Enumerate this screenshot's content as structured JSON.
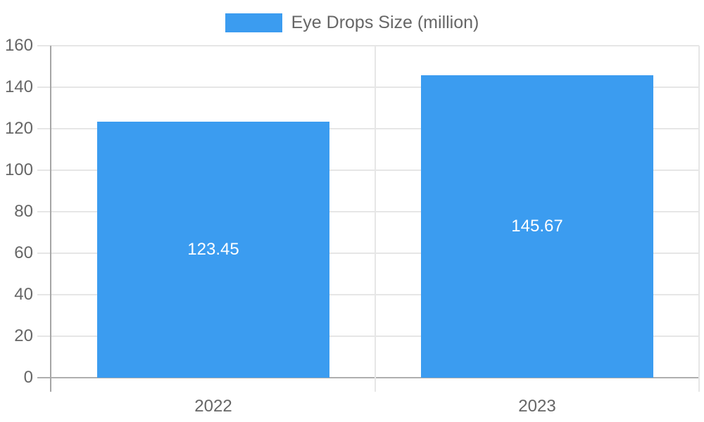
{
  "chart_data": {
    "type": "bar",
    "title": "",
    "legend": {
      "label": "Eye Drops Size (million)",
      "position": "top-center"
    },
    "categories": [
      "2022",
      "2023"
    ],
    "series": [
      {
        "name": "Eye Drops Size (million)",
        "color": "#3B9CF0",
        "values": [
          123.45,
          145.67
        ],
        "value_labels": [
          "123.45",
          "145.67"
        ]
      }
    ],
    "xlabel": "",
    "ylabel": "",
    "ylim": [
      0,
      160
    ],
    "ytick_step": 20,
    "yticks": [
      "0",
      "20",
      "40",
      "60",
      "80",
      "100",
      "120",
      "140",
      "160"
    ],
    "grid": true,
    "value_label_position": "inside-center",
    "colors": {
      "bar": "#3B9CF0",
      "value_label": "#FFFFFF",
      "axis_text": "#666666",
      "gridline": "#E6E6E6",
      "zero_line": "#AFAFAF",
      "axis_line": "#A6A6A6",
      "background": "#FFFFFF"
    }
  }
}
